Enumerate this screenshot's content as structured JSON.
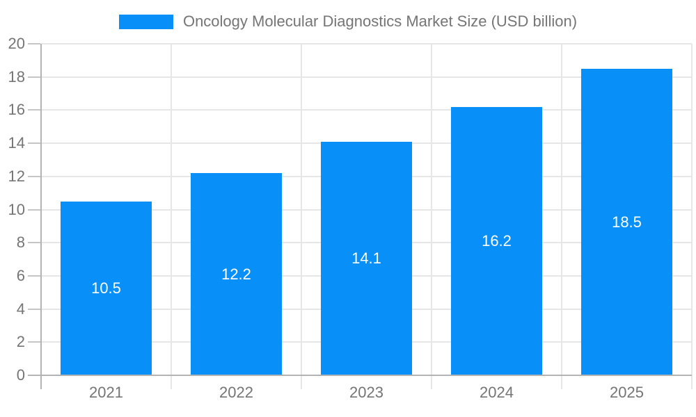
{
  "chart_data": {
    "type": "bar",
    "categories": [
      "2021",
      "2022",
      "2023",
      "2024",
      "2025"
    ],
    "series": [
      {
        "name": "Oncology Molecular Diagnostics Market Size (USD billion)",
        "values": [
          10.5,
          12.2,
          14.1,
          16.2,
          18.5
        ]
      }
    ],
    "legend": [
      "Oncology Molecular Diagnostics Market Size (USD billion)"
    ],
    "legend_position": "top-center",
    "xlabel": "",
    "ylabel": "",
    "ylim": [
      0,
      20
    ],
    "yticks": [
      0,
      2,
      4,
      6,
      8,
      10,
      12,
      14,
      16,
      18,
      20
    ],
    "grid": "horizontal and vertical category boundaries",
    "value_labels": "inside bar, vertically centered, one decimal"
  },
  "colors": {
    "bar": "#0990f8",
    "value_label": "#ffffff",
    "axis_text": "#757575",
    "legend_text": "#757575",
    "gridline": "#e6e6e6",
    "axis_line": "#b3b3b3",
    "tick": "#c6c6c6",
    "background": "#ffffff"
  }
}
